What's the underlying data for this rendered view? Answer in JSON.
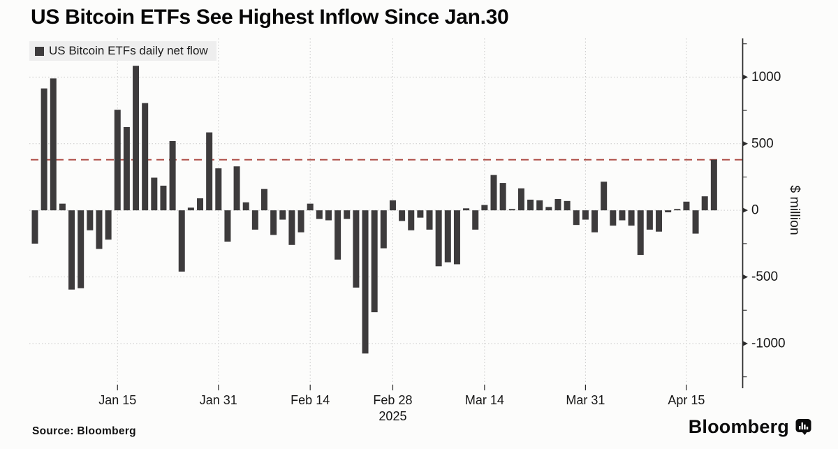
{
  "title": "US Bitcoin ETFs See Highest Inflow Since Jan.30",
  "legend": {
    "label": "US Bitcoin ETFs daily net flow",
    "swatch_color": "#3d3b3c"
  },
  "chart_data": {
    "type": "bar",
    "title": "US Bitcoin ETFs See Highest Inflow Since Jan.30",
    "series_name": "US Bitcoin ETFs daily net flow",
    "ylabel": "$ million",
    "values": [
      -250,
      915,
      990,
      50,
      -595,
      -585,
      -150,
      -290,
      -220,
      755,
      625,
      1085,
      805,
      245,
      185,
      520,
      -460,
      20,
      90,
      585,
      315,
      -235,
      330,
      60,
      -145,
      160,
      -185,
      -70,
      -260,
      -165,
      50,
      -65,
      -75,
      -370,
      -65,
      -580,
      -1075,
      -765,
      -285,
      75,
      -80,
      -150,
      -55,
      -145,
      -420,
      -390,
      -405,
      15,
      -145,
      40,
      265,
      205,
      10,
      165,
      80,
      75,
      25,
      85,
      70,
      -110,
      -70,
      -165,
      215,
      -115,
      -75,
      -115,
      -335,
      -145,
      -160,
      -15,
      10,
      65,
      -175,
      105,
      380
    ],
    "x_ticks": [
      {
        "label": "Jan 15",
        "index": 9
      },
      {
        "label": "Jan 31",
        "index": 20
      },
      {
        "label": "Feb 14",
        "index": 30
      },
      {
        "label": "Feb 28",
        "index": 39,
        "sublabel": "2025"
      },
      {
        "label": "Mar 14",
        "index": 49
      },
      {
        "label": "Mar 31",
        "index": 60
      },
      {
        "label": "Apr 15",
        "index": 71
      }
    ],
    "y_ticks": [
      1000,
      500,
      0,
      -500,
      -1000
    ],
    "y_minor_step": 250,
    "ylim": [
      -1320,
      1280
    ],
    "grid": true,
    "legend_position": "top-left",
    "ref_line": {
      "value": 380,
      "style": "dashed",
      "color": "#b0504a"
    },
    "bar_color": "#3d3b3c",
    "grid_color": "#c9c9c9",
    "axis_color": "#2b2b2b",
    "text_color": "#161616"
  },
  "footer": {
    "source_text": "Source: Bloomberg",
    "logo_text": "Bloomberg",
    "logo_icon": "bar-chart-bubble-icon"
  }
}
